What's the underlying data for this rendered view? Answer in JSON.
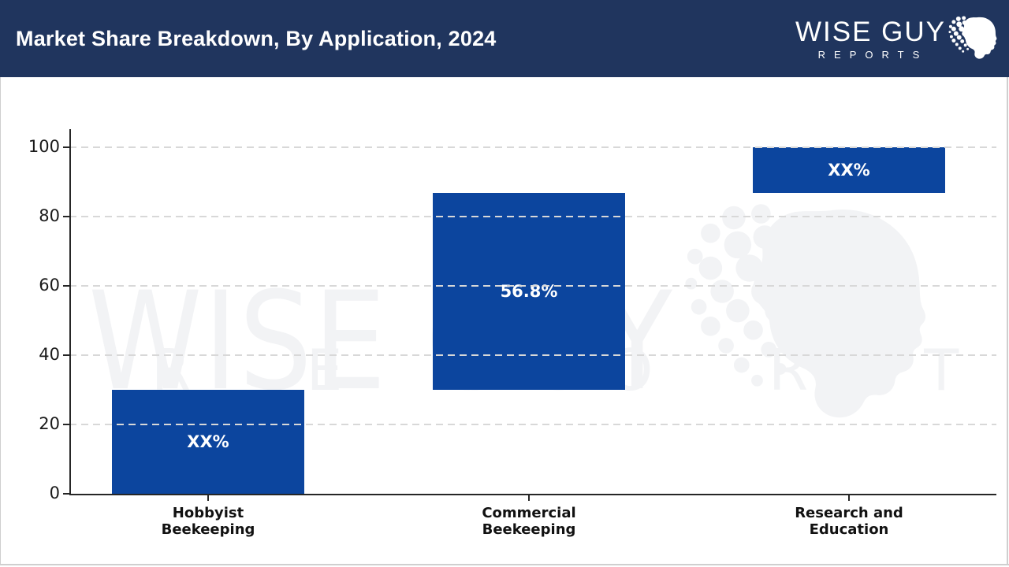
{
  "header": {
    "title": "Market Share Breakdown, By Application, 2024",
    "logo": {
      "line1": "WISE GUY",
      "line2": "REPORTS"
    }
  },
  "watermark": {
    "line1": "WISE GUY",
    "line2": "R E P O R T S"
  },
  "chart_data": {
    "type": "bar",
    "subtype": "floating-waterfall-bars",
    "title": "Market Share Breakdown, By Application, 2024",
    "categories": [
      [
        "Hobbyist",
        "Beekeeping"
      ],
      [
        "Commercial",
        "Beekeeping"
      ],
      [
        "Research and",
        "Education"
      ]
    ],
    "bars": [
      {
        "category": "Hobbyist Beekeeping",
        "start": 0,
        "end": 30,
        "height": 30,
        "label": "XX%"
      },
      {
        "category": "Commercial Beekeeping",
        "start": 30,
        "end": 86.8,
        "height": 56.8,
        "label": "56.8%"
      },
      {
        "category": "Research and Education",
        "start": 86.8,
        "end": 100,
        "height": 13.2,
        "label": "XX%"
      }
    ],
    "yticks": [
      0,
      20,
      40,
      60,
      80,
      100
    ],
    "ylim": [
      0,
      105
    ],
    "xlabel": "",
    "ylabel": "",
    "grid": "horizontal-dashed-above-bars",
    "legend": "none",
    "bar_color": "#0c459e",
    "bar_label_color": "#ffffff",
    "grid_color": "#d8d8d8",
    "axis_color": "#262626",
    "header_bg_color": "#20355e",
    "watermark_color": "#f2f3f5"
  }
}
